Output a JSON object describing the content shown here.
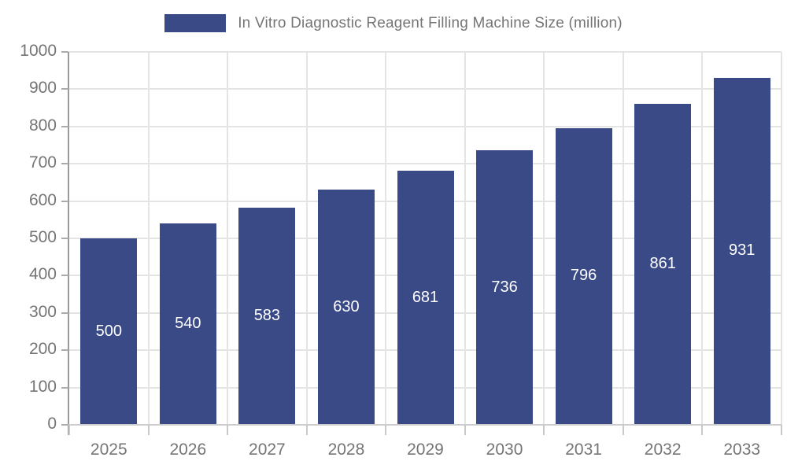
{
  "chart_data": {
    "type": "bar",
    "title": "In Vitro Diagnostic Reagent Filling Machine Size (million)",
    "categories": [
      "2025",
      "2026",
      "2027",
      "2028",
      "2029",
      "2030",
      "2031",
      "2032",
      "2033"
    ],
    "values": [
      500,
      540,
      583,
      630,
      681,
      736,
      796,
      861,
      931
    ],
    "series": [
      {
        "name": "In Vitro Diagnostic Reagent Filling Machine Size (million)",
        "values": [
          500,
          540,
          583,
          630,
          681,
          736,
          796,
          861,
          931
        ]
      }
    ],
    "xlabel": "",
    "ylabel": "",
    "ylim": [
      0,
      1000
    ],
    "yticks": [
      0,
      100,
      200,
      300,
      400,
      500,
      600,
      700,
      800,
      900,
      1000
    ],
    "grid": true,
    "legend_position": "top-center",
    "value_labels": "inside-center",
    "colors": {
      "bar": "#3a4a87",
      "bar_label": "#ffffff",
      "axis_text": "#757575",
      "legend_text": "#757575",
      "grid_line": "#e4e4e4",
      "y_axis_line": "#9a9a9a",
      "x_axis_line": "#cccccc"
    }
  }
}
